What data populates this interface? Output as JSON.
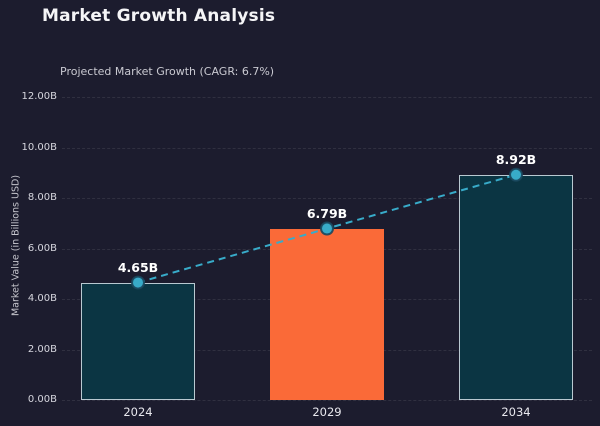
{
  "page": {
    "title": "Market Growth Analysis"
  },
  "chart_data": {
    "type": "bar",
    "title": "Market Growth Analysis",
    "subtitle": "Projected Market Growth (CAGR: 6.7%)",
    "categories": [
      "2024",
      "2029",
      "2034"
    ],
    "values": [
      4.65,
      6.79,
      8.92
    ],
    "value_labels": [
      "4.65B",
      "6.79B",
      "8.92B"
    ],
    "bar_colors": [
      "#0b3543",
      "#fa6a38",
      "#0b3543"
    ],
    "bar_border_colors": [
      "#b9c9d1",
      "none",
      "#b9c9d1"
    ],
    "trend_line": {
      "color": "#38abc9",
      "style": "dashed",
      "marker": "circle",
      "marker_color": "#38abc9"
    },
    "xlabel": "",
    "ylabel": "Market Value (in Billions USD)",
    "ylim": [
      0,
      12
    ],
    "yticks": [
      {
        "value": 0,
        "label": "0.00B"
      },
      {
        "value": 2,
        "label": "2.00B"
      },
      {
        "value": 4,
        "label": "4.00B"
      },
      {
        "value": 6,
        "label": "6.00B"
      },
      {
        "value": 8,
        "label": "8.00B"
      },
      {
        "value": 10,
        "label": "10.00B"
      },
      {
        "value": 12,
        "label": "12.00B"
      }
    ],
    "grid": "horizontal-faint-dashed",
    "legend": "none",
    "background_color": "#1c1c2e"
  }
}
